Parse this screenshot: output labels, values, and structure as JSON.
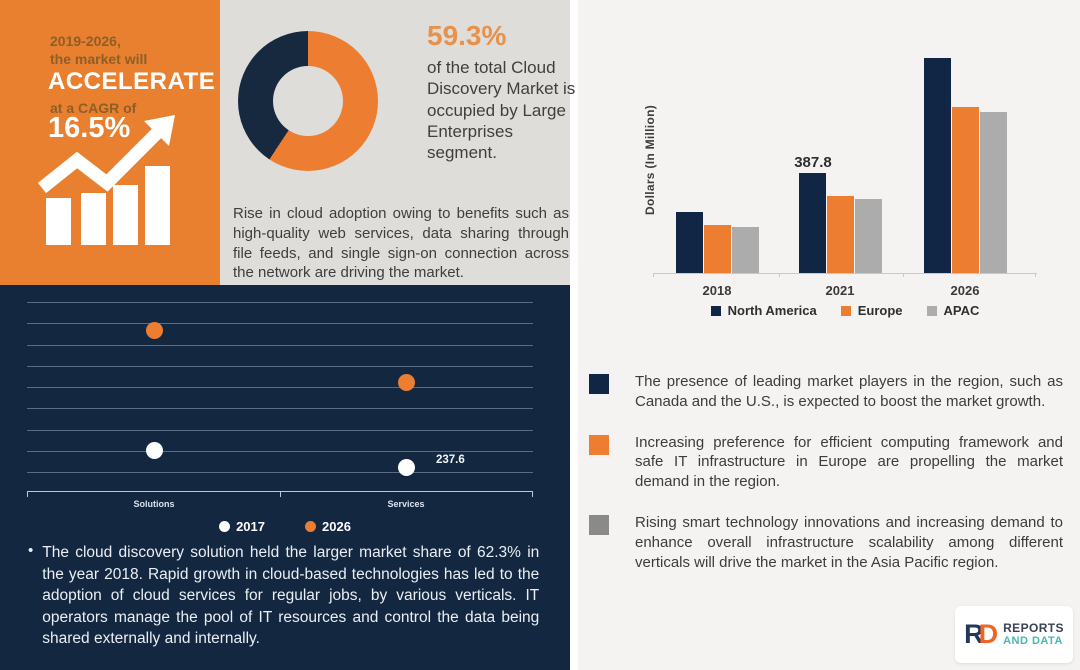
{
  "colors": {
    "orange_panel": "#E8802F",
    "accent_orange": "#ED7D31",
    "navy_panel": "#142740",
    "navy_bar": "#0E2342",
    "gray_panel": "#DEDDD9",
    "right_background": "#F4F3F1",
    "gray_series": "#ACACAC",
    "teal_logo": "#46B8AD"
  },
  "cagr_panel": {
    "period": "2019-2026,",
    "lead": "the market will",
    "accelerate": "ACCELERATE",
    "cagr_label": "at a CAGR of",
    "rate": "16.5%"
  },
  "donut_panel": {
    "percentage": "59.3%",
    "description": "of the total Cloud Discovery Market is occupied by Large Enterprises segment.",
    "note": "Rise in cloud adoption owing to benefits such as high-quality web services, data sharing through file feeds, and single sign-on connection across the network are driving the market."
  },
  "market_share_note": {
    "bullet": "•",
    "text": "The cloud discovery solution held the larger market share of 62.3% in the year 2018. Rapid growth in cloud-based technologies has led to the adoption of cloud services for regular jobs, by various verticals. IT operators manage the pool of IT resources and control the data being shared externally and internally."
  },
  "region_bullets": [
    {
      "color": "#112644",
      "text": "The presence of leading market players in the region, such as Canada and the U.S., is expected to boost the market growth."
    },
    {
      "color": "#ED7D31",
      "text": "Increasing preference for efficient computing framework and safe IT infrastructure in Europe are propelling the market demand in the region."
    },
    {
      "color": "#8A8A88",
      "text": "Rising smart technology innovations and increasing demand to enhance overall infrastructure scalability among different verticals will drive the market in the Asia Pacific region."
    }
  ],
  "logo": {
    "mark_r": "R",
    "mark_d": "D",
    "name_top": "REPORTS",
    "name_bottom": "AND DATA"
  },
  "chart_data": [
    {
      "id": "large-enterprise-share-donut",
      "type": "pie",
      "donut": true,
      "slices": [
        {
          "label": "Large Enterprises",
          "value": 59.3,
          "color": "#ED7D31"
        },
        {
          "label": "Rest of market",
          "value": 40.7,
          "color": "#16293F"
        }
      ]
    },
    {
      "id": "regional-market-size-bar",
      "type": "bar",
      "categories": [
        "2018",
        "2021",
        "2026"
      ],
      "series": [
        {
          "name": "North America",
          "color": "#112644",
          "values": [
            236,
            387.8,
            830
          ]
        },
        {
          "name": "Europe",
          "color": "#ED7D31",
          "values": [
            186,
            299,
            640
          ]
        },
        {
          "name": "APAC",
          "color": "#ACACAC",
          "values": [
            178,
            287,
            620
          ]
        }
      ],
      "ylabel": "Dollars (In Million)",
      "ylim": [
        0,
        880
      ],
      "grid": false,
      "legend_position": "bottom",
      "data_labels": [
        {
          "category": "2021",
          "series": "North America",
          "text": "387.8"
        }
      ]
    },
    {
      "id": "segment-dot-plot",
      "type": "scatter",
      "categories": [
        "Solutions",
        "Services"
      ],
      "series": [
        {
          "name": "2017",
          "color": "#FFFFFF",
          "values": [
            415,
            237.6
          ]
        },
        {
          "name": "2026",
          "color": "#ED7D31",
          "values": [
            1600,
            1080
          ]
        }
      ],
      "ylim": [
        0,
        1930
      ],
      "gridlines": 9,
      "grid": true,
      "legend_position": "bottom",
      "data_labels": [
        {
          "category": "Services",
          "series": "2017",
          "text": "237.6"
        }
      ]
    }
  ]
}
